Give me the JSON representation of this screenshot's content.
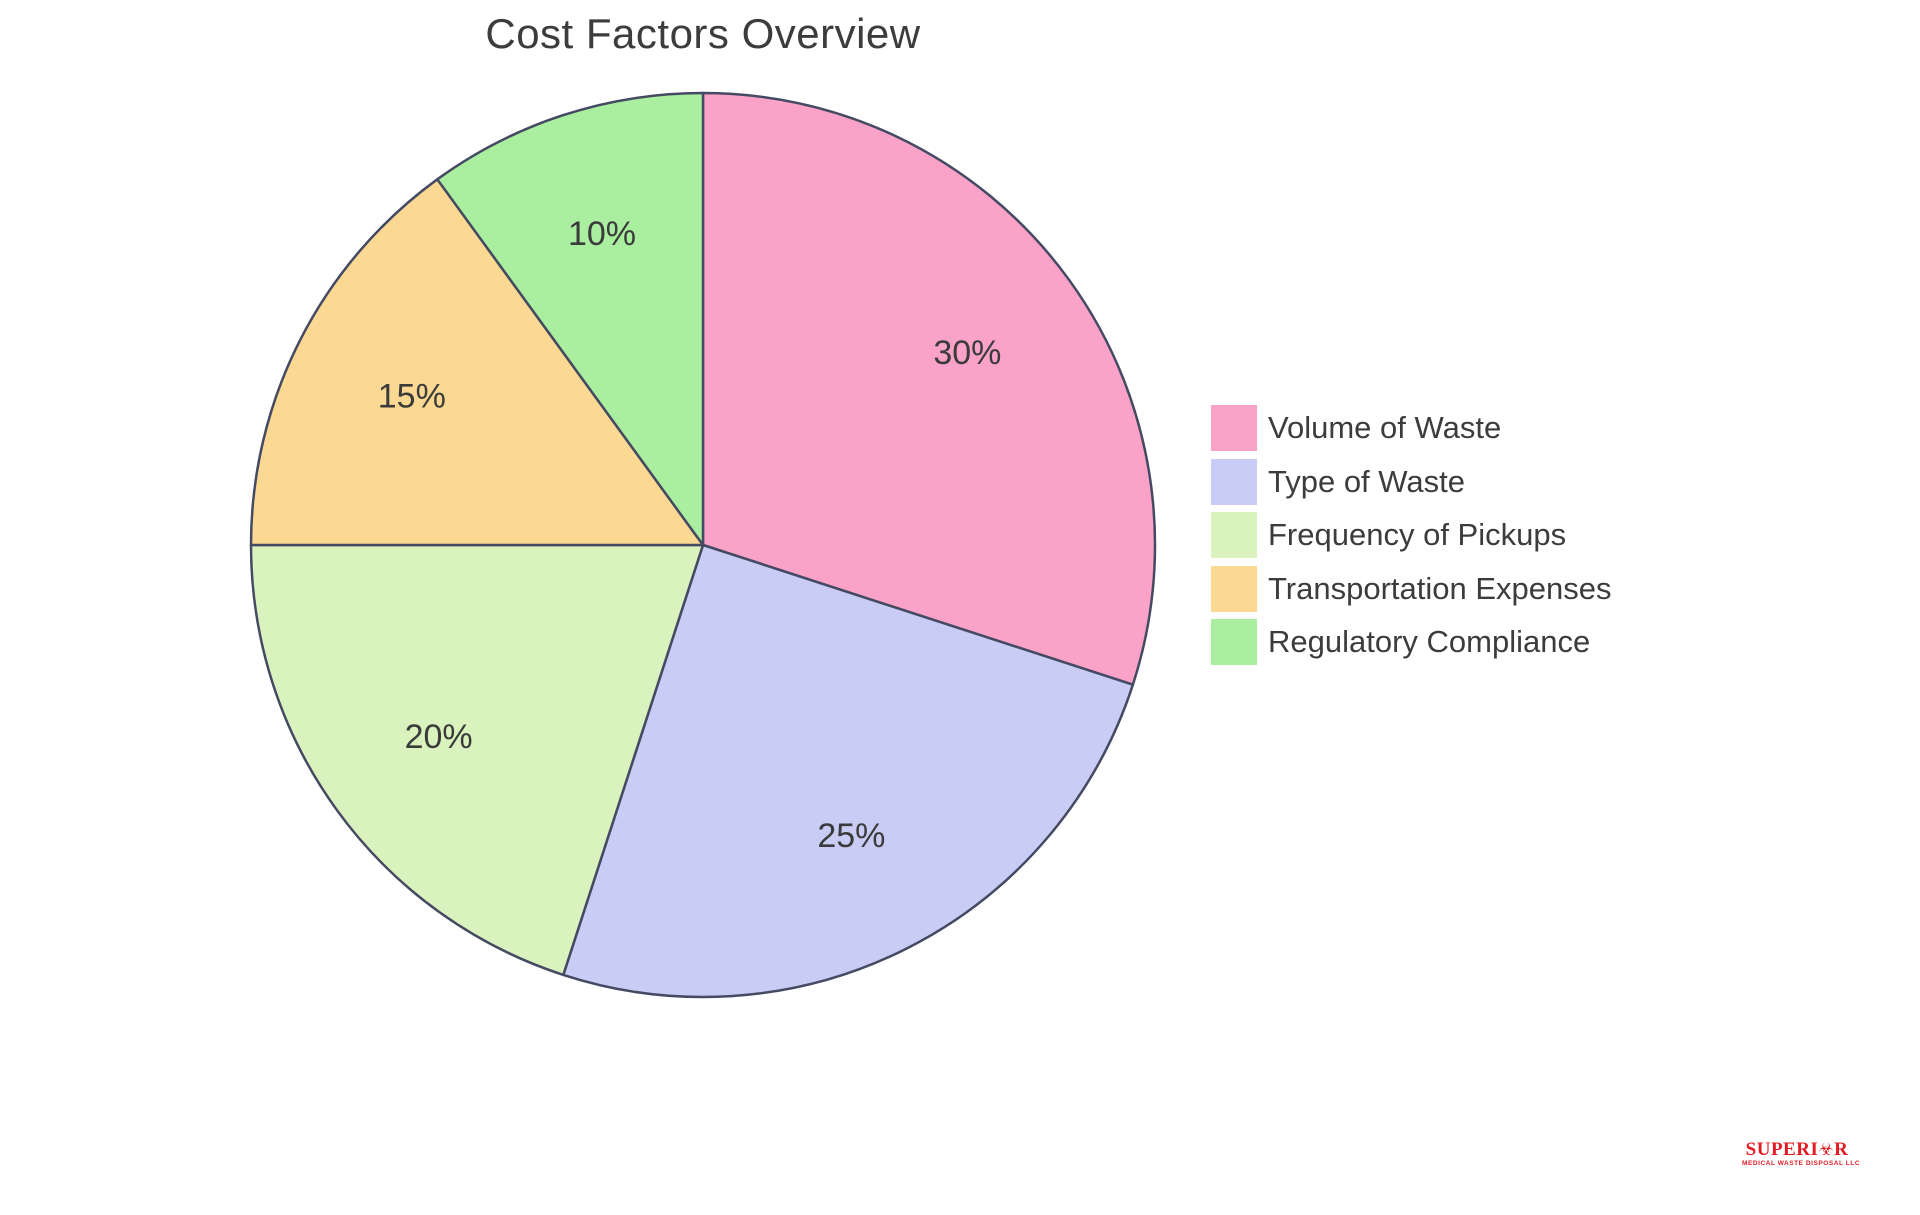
{
  "title": "Cost Factors Overview",
  "chart_data": {
    "type": "pie",
    "title": "Cost Factors Overview",
    "start_angle_deg": -90,
    "direction": "clockwise",
    "stroke_color": "#454a63",
    "stroke_width": 2.5,
    "percent_label_color": "#3b3b3b",
    "legend_position": "right",
    "slices": [
      {
        "label": "Volume of Waste",
        "value": 30,
        "pct_label": "30%",
        "color": "#faa2c8"
      },
      {
        "label": "Type of Waste",
        "value": 25,
        "pct_label": "25%",
        "color": "#c9ccf4"
      },
      {
        "label": "Frequency of Pickups",
        "value": 20,
        "pct_label": "20%",
        "color": "#daf2be"
      },
      {
        "label": "Transportation Expenses",
        "value": 15,
        "pct_label": "15%",
        "color": "#fbd992"
      },
      {
        "label": "Regulatory Compliance",
        "value": 10,
        "pct_label": "10%",
        "color": "#aaefa0"
      }
    ]
  },
  "logo": {
    "brand_prefix": "SUPERI",
    "biohazard_glyph": "☣",
    "brand_suffix": "R",
    "tagline": "MEDICAL WASTE DISPOSAL LLC",
    "color": "#e21b23"
  }
}
